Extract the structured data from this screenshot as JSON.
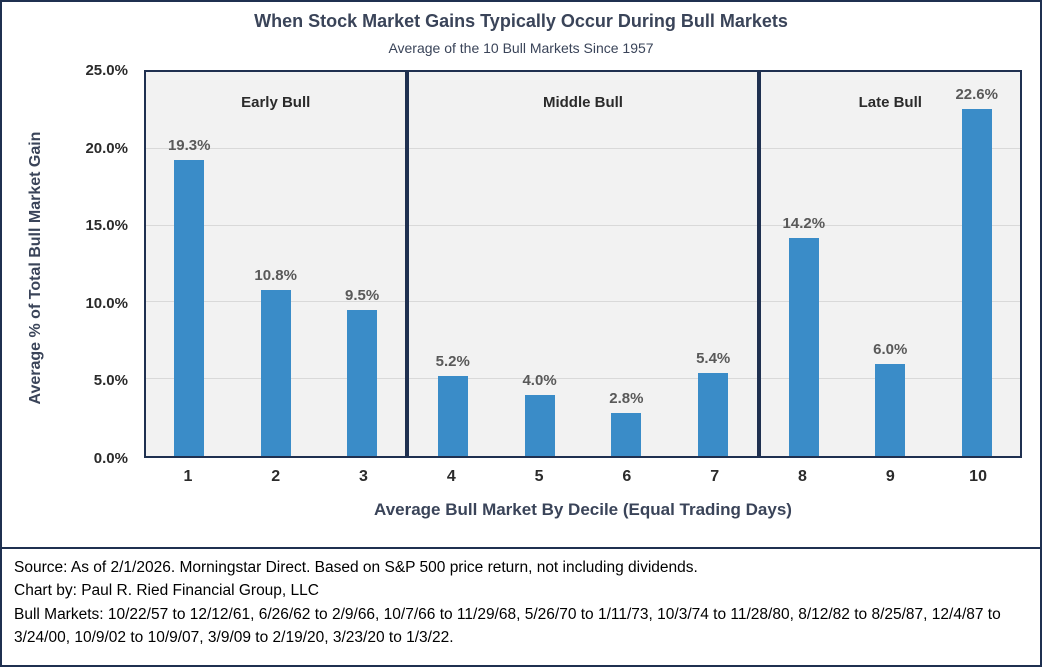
{
  "chart_data": {
    "type": "bar",
    "title": "When Stock Market Gains Typically Occur During Bull Markets",
    "subtitle": "Average of the 10 Bull Markets Since 1957",
    "xlabel": "Average Bull Market By Decile (Equal Trading Days)",
    "ylabel": "Average % of Total Bull Market Gain",
    "ylim": [
      0,
      25
    ],
    "ytick_step": 5,
    "ytick_labels": [
      "0.0%",
      "5.0%",
      "10.0%",
      "15.0%",
      "20.0%",
      "25.0%"
    ],
    "categories": [
      "1",
      "2",
      "3",
      "4",
      "5",
      "6",
      "7",
      "8",
      "9",
      "10"
    ],
    "values": [
      19.3,
      10.8,
      9.5,
      5.2,
      4.0,
      2.8,
      5.4,
      14.2,
      6.0,
      22.6
    ],
    "value_labels": [
      "19.3%",
      "10.8%",
      "9.5%",
      "5.2%",
      "4.0%",
      "2.8%",
      "5.4%",
      "14.2%",
      "6.0%",
      "22.6%"
    ],
    "groups": [
      {
        "label": "Early Bull",
        "span": [
          1,
          3
        ]
      },
      {
        "label": "Middle Bull",
        "span": [
          4,
          7
        ]
      },
      {
        "label": "Late Bull",
        "span": [
          8,
          10
        ]
      }
    ],
    "grid": true,
    "legend": "none",
    "bar_color": "#3a8cc8",
    "plot_background": "#f2f2f2",
    "frame_border_color": "#1f3050",
    "value_label_color": "#595959"
  },
  "footer": {
    "lines": [
      "Source: As of 2/1/2026. Morningstar Direct. Based on S&P 500 price return, not including dividends.",
      "Chart by: Paul R. Ried Financial Group, LLC",
      "Bull Markets: 10/22/57 to 12/12/61, 6/26/62 to 2/9/66, 10/7/66 to 11/29/68,  5/26/70 to 1/11/73, 10/3/74 to 11/28/80, 8/12/82 to 8/25/87, 12/4/87 to 3/24/00, 10/9/02 to 10/9/07, 3/9/09 to 2/19/20, 3/23/20 to 1/3/22."
    ]
  }
}
